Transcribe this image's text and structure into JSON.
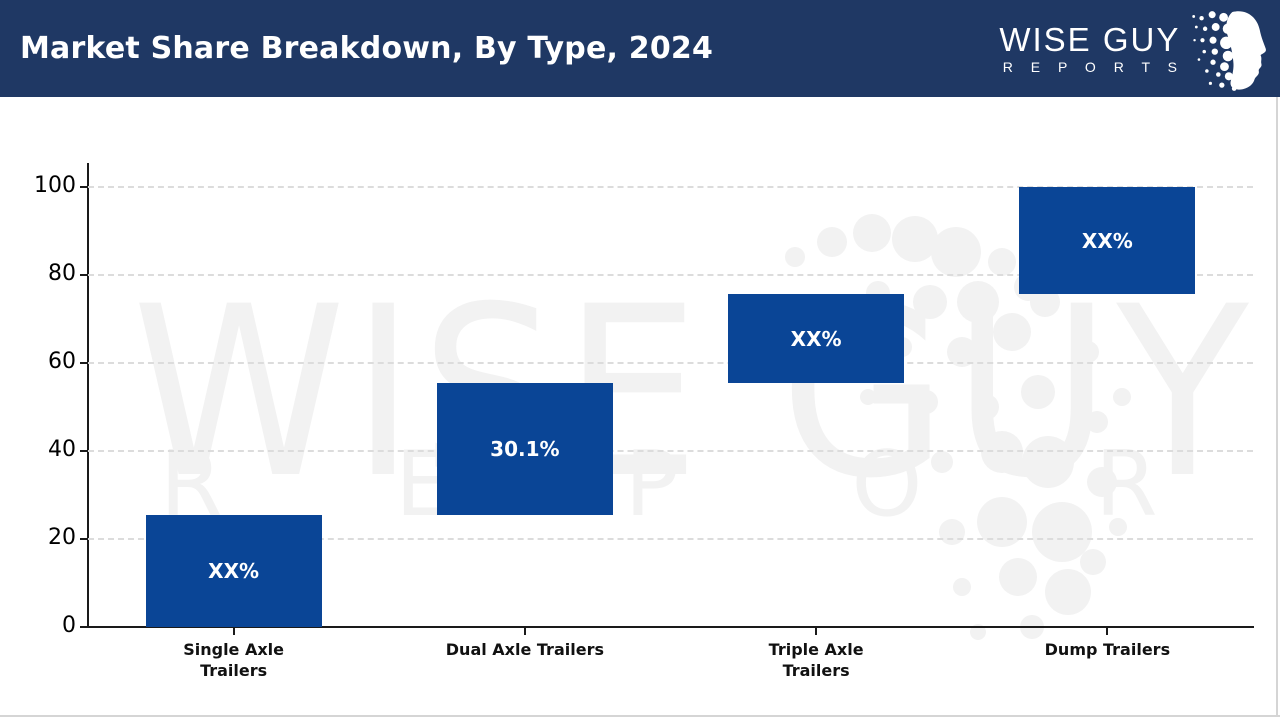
{
  "header": {
    "title": "Market Share Breakdown, By Type, 2024",
    "bg_color": "#1F3864"
  },
  "logo": {
    "line1": "WISE GUY",
    "line2": "R E P O R T S"
  },
  "watermark": {
    "line1": "WISE GUY",
    "line2": "R E P O R T S"
  },
  "chart_data": {
    "type": "bar",
    "subtype": "floating-segment-waterfall",
    "title": "Market Share Breakdown, By Type, 2024",
    "categories": [
      "Single Axle Trailers",
      "Dual Axle Trailers",
      "Triple Axle Trailers",
      "Dump Trailers"
    ],
    "tick_labels": [
      "Single Axle\nTrailers",
      "Dual Axle Trailers",
      "Triple Axle\nTrailers",
      "Dump Trailers"
    ],
    "segments": [
      {
        "category": "Single Axle Trailers",
        "start": 0,
        "end": 25.4,
        "value_label": "XX%"
      },
      {
        "category": "Dual Axle Trailers",
        "start": 25.4,
        "end": 55.5,
        "value_label": "30.1%",
        "value": 30.1
      },
      {
        "category": "Triple Axle Trailers",
        "start": 55.5,
        "end": 75.6,
        "value_label": "XX%"
      },
      {
        "category": "Dump Trailers",
        "start": 75.6,
        "end": 100,
        "value_label": "XX%"
      }
    ],
    "ylim": [
      0,
      100
    ],
    "yticks": [
      0,
      20,
      40,
      60,
      80,
      100
    ],
    "xlabel": "",
    "ylabel": "",
    "grid": "horizontal dashed",
    "legend": "none",
    "bar_color": "#0A4596",
    "bar_label_color": "#FFFFFF",
    "axis_color": "#1a1a1a",
    "grid_color": "#dcdcdc"
  }
}
